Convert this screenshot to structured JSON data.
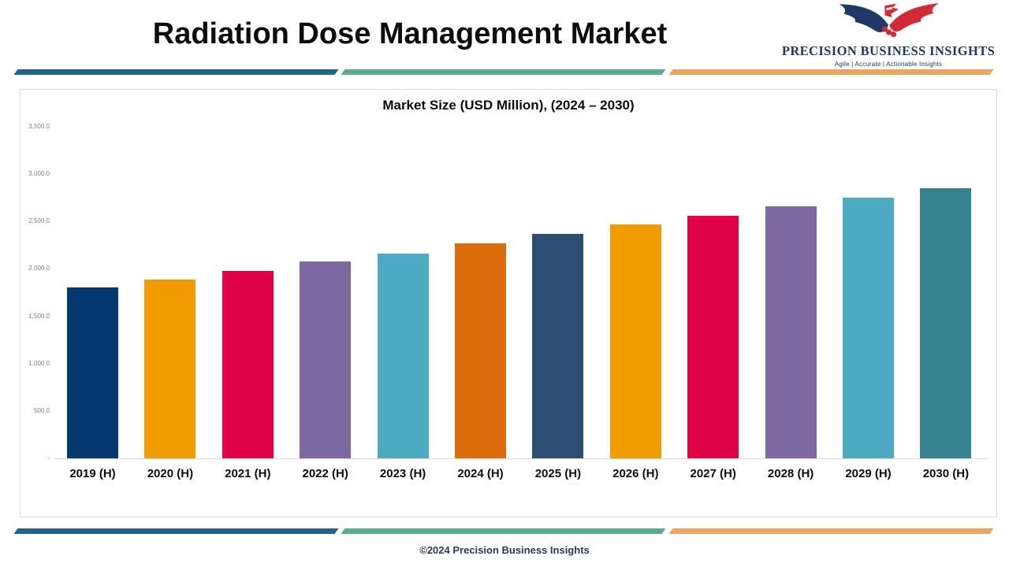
{
  "header": {
    "title": "Radiation Dose Management Market",
    "logo": {
      "name": "PRECISION BUSINESS INSIGHTS",
      "tagline": "Agile | Accurate | Actionable Insights",
      "eagle_navy": "#1f3864",
      "eagle_red": "#d22b38"
    }
  },
  "chart_data": {
    "type": "bar",
    "title": "Market Size (USD Million), (2024 – 2030)",
    "categories": [
      "2019 (H)",
      "2020 (H)",
      "2021 (H)",
      "2022 (H)",
      "2023 (H)",
      "2024 (H)",
      "2025 (H)",
      "2026 (H)",
      "2027 (H)",
      "2028 (H)",
      "2029 (H)",
      "2030 (H)"
    ],
    "values": [
      1800,
      1890,
      1980,
      2075,
      2165,
      2270,
      2370,
      2470,
      2560,
      2660,
      2750,
      2850
    ],
    "bar_colors": [
      "#04386e",
      "#f09b00",
      "#e00246",
      "#7d68a2",
      "#4cabc3",
      "#dd6c0c",
      "#2d4d72",
      "#f09b00",
      "#e00246",
      "#7d68a2",
      "#4cabc3",
      "#34818f"
    ],
    "xlabel": "",
    "ylabel": "",
    "ylim": [
      0,
      3500
    ],
    "y_ticks": [
      {
        "label": "3,500.0",
        "value": 3500
      },
      {
        "label": "3,000.0",
        "value": 3000
      },
      {
        "label": "2,500.0",
        "value": 2500
      },
      {
        "label": "2,000.0",
        "value": 2000
      },
      {
        "label": "1,500.0",
        "value": 1500
      },
      {
        "label": "1,000.0",
        "value": 1000
      },
      {
        "label": "500.0",
        "value": 500
      },
      {
        "label": "-",
        "value": 0
      }
    ],
    "grid": false,
    "legend": "none"
  },
  "theme": {
    "divider_colors": [
      "#1e648c",
      "#55af8d",
      "#eca55c"
    ],
    "axis_label_color": "#7f7f7f",
    "footer_color": "#2b3a55"
  },
  "footer": {
    "copyright": "©2024 Precision Business Insights"
  }
}
